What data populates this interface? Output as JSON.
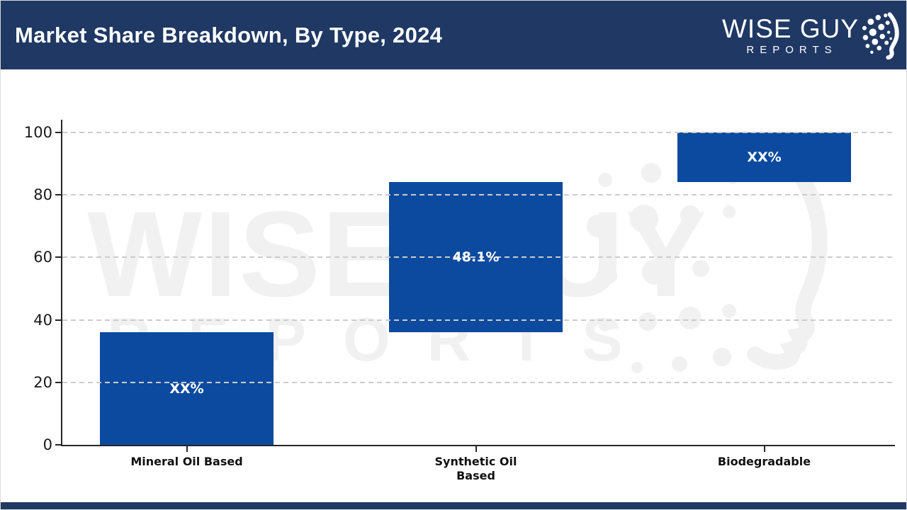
{
  "header": {
    "title": "Market Share Breakdown, By Type, 2024",
    "logo": {
      "brand": "WISE GUY",
      "tagline": "REPORTS"
    }
  },
  "watermark": {
    "brand": "WISE GUY",
    "tagline": "REPORTS"
  },
  "colors": {
    "header_bg": "#1f3864",
    "footer_bg": "#1f3864",
    "bar_fill": "#0b4a9f",
    "bar_label_text": "#ffffff",
    "gridline": "#cccccc",
    "axis": "#262626",
    "tick_label": "#1a1a1a",
    "watermark": "#f1f1f1"
  },
  "chart_data": {
    "type": "bar",
    "subtype": "stacked-waterfall-percentage",
    "title": "Market Share Breakdown, By Type, 2024",
    "categories": [
      "Mineral Oil Based",
      "Synthetic Oil\nBased",
      "Biodegradable"
    ],
    "segments": [
      {
        "category": "Mineral Oil Based",
        "start": 0,
        "end": 36,
        "label": "XX%"
      },
      {
        "category": "Synthetic Oil Based",
        "start": 36,
        "end": 84.1,
        "label": "48.1%"
      },
      {
        "category": "Biodegradable",
        "start": 84.1,
        "end": 100,
        "label": "XX%"
      }
    ],
    "visible_value_labels": [
      "XX%",
      "48.1%",
      "XX%"
    ],
    "xlabel": "",
    "ylabel": "",
    "yticks": [
      0,
      20,
      40,
      60,
      80,
      100
    ],
    "ylim": [
      0,
      104
    ],
    "grid": "horizontal-dashed",
    "grid_above_bars": true,
    "legend": "none"
  }
}
